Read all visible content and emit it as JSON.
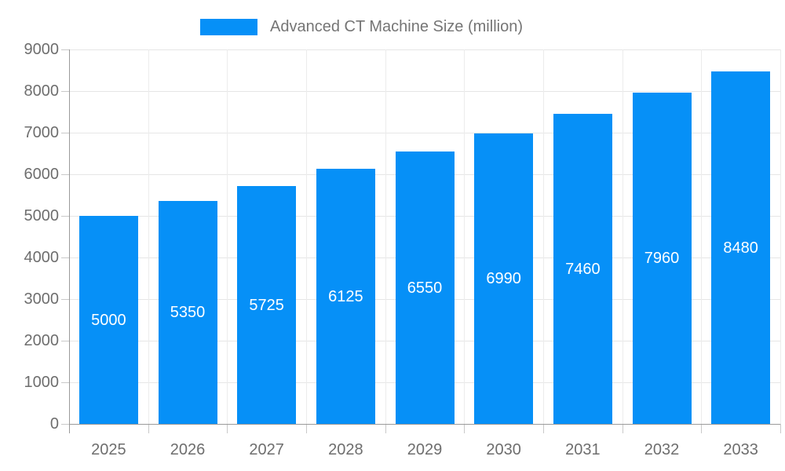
{
  "legend": {
    "label": "Advanced CT Machine Size (million)"
  },
  "chart_data": {
    "type": "bar",
    "title": "Advanced CT Machine Size (million)",
    "categories": [
      "2025",
      "2026",
      "2027",
      "2028",
      "2029",
      "2030",
      "2031",
      "2032",
      "2033"
    ],
    "series": [
      {
        "name": "Advanced CT Machine Size (million)",
        "values": [
          5000,
          5350,
          5725,
          6125,
          6550,
          6990,
          7460,
          7960,
          8480
        ]
      }
    ],
    "value_labels": [
      "5000",
      "5350",
      "5725",
      "6125",
      "6550",
      "6990",
      "7460",
      "7960",
      "8480"
    ],
    "xlabel": "",
    "ylabel": "",
    "ylim": [
      0,
      9000
    ],
    "ytick_step": 1000,
    "ytick_labels": [
      "0",
      "1000",
      "2000",
      "3000",
      "4000",
      "5000",
      "6000",
      "7000",
      "8000",
      "9000"
    ],
    "grid": true,
    "legend_position": "top",
    "colors": {
      "bar": "#0690f7",
      "value_label": "#ffffff",
      "axis_text": "#6e6e6e",
      "legend_text": "#757575",
      "grid_h": "#e6e6e6",
      "grid_v": "#ececec",
      "axis_line": "#9a9a9a",
      "tick": "#c9c9c9"
    }
  }
}
